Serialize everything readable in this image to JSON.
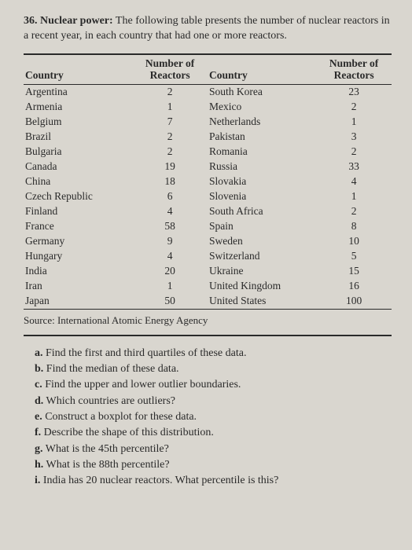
{
  "question": {
    "number": "36.",
    "title": "Nuclear power:",
    "intro": "The following table presents the number of nuclear reactors in a recent year, in each country that had one or more reactors."
  },
  "table": {
    "headers": {
      "country": "Country",
      "reactors_line1": "Number of",
      "reactors_line2": "Reactors"
    },
    "rows_left": [
      {
        "country": "Argentina",
        "value": "2"
      },
      {
        "country": "Armenia",
        "value": "1"
      },
      {
        "country": "Belgium",
        "value": "7"
      },
      {
        "country": "Brazil",
        "value": "2"
      },
      {
        "country": "Bulgaria",
        "value": "2"
      },
      {
        "country": "Canada",
        "value": "19"
      },
      {
        "country": "China",
        "value": "18"
      },
      {
        "country": "Czech Republic",
        "value": "6"
      },
      {
        "country": "Finland",
        "value": "4"
      },
      {
        "country": "France",
        "value": "58"
      },
      {
        "country": "Germany",
        "value": "9"
      },
      {
        "country": "Hungary",
        "value": "4"
      },
      {
        "country": "India",
        "value": "20"
      },
      {
        "country": "Iran",
        "value": "1"
      },
      {
        "country": "Japan",
        "value": "50"
      }
    ],
    "rows_right": [
      {
        "country": "South Korea",
        "value": "23"
      },
      {
        "country": "Mexico",
        "value": "2"
      },
      {
        "country": "Netherlands",
        "value": "1"
      },
      {
        "country": "Pakistan",
        "value": "3"
      },
      {
        "country": "Romania",
        "value": "2"
      },
      {
        "country": "Russia",
        "value": "33"
      },
      {
        "country": "Slovakia",
        "value": "4"
      },
      {
        "country": "Slovenia",
        "value": "1"
      },
      {
        "country": "South Africa",
        "value": "2"
      },
      {
        "country": "Spain",
        "value": "8"
      },
      {
        "country": "Sweden",
        "value": "10"
      },
      {
        "country": "Switzerland",
        "value": "5"
      },
      {
        "country": "Ukraine",
        "value": "15"
      },
      {
        "country": "United Kingdom",
        "value": "16"
      },
      {
        "country": "United States",
        "value": "100"
      }
    ]
  },
  "source": "Source: International Atomic Energy Agency",
  "subparts": [
    {
      "label": "a.",
      "text": "Find the first and third quartiles of these data."
    },
    {
      "label": "b.",
      "text": "Find the median of these data."
    },
    {
      "label": "c.",
      "text": "Find the upper and lower outlier boundaries."
    },
    {
      "label": "d.",
      "text": "Which countries are outliers?"
    },
    {
      "label": "e.",
      "text": "Construct a boxplot for these data."
    },
    {
      "label": "f.",
      "text": "Describe the shape of this distribution."
    },
    {
      "label": "g.",
      "text": "What is the 45th percentile?"
    },
    {
      "label": "h.",
      "text": "What is the 88th percentile?"
    },
    {
      "label": "i.",
      "text": "India has 20 nuclear reactors. What percentile is this?"
    }
  ]
}
